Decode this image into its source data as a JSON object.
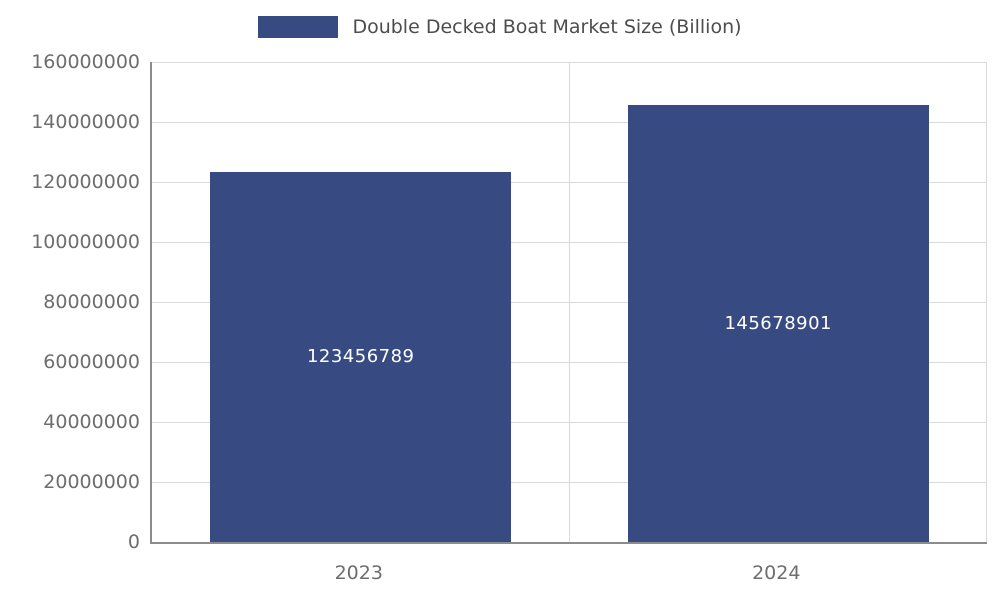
{
  "legend": {
    "label": "Double Decked Boat Market Size (Billion)"
  },
  "colors": {
    "bar": "#374a81",
    "grid": "#dadada",
    "axis": "#8c8c8c",
    "tick_text": "#6e6e6e",
    "title_text": "#4d4d4d",
    "bar_label_text": "#ffffff"
  },
  "chart_data": {
    "type": "bar",
    "title": "Double Decked Boat Market Size (Billion)",
    "categories": [
      "2023",
      "2024"
    ],
    "values": [
      123456789,
      145678901
    ],
    "bar_labels": [
      "123456789",
      "145678901"
    ],
    "xlabel": "",
    "ylabel": "",
    "ylim": [
      0,
      160000000
    ],
    "yticks": [
      0,
      20000000,
      40000000,
      60000000,
      80000000,
      100000000,
      120000000,
      140000000,
      160000000
    ],
    "grid": true,
    "legend_position": "top",
    "bar_width_fraction": 0.72
  }
}
